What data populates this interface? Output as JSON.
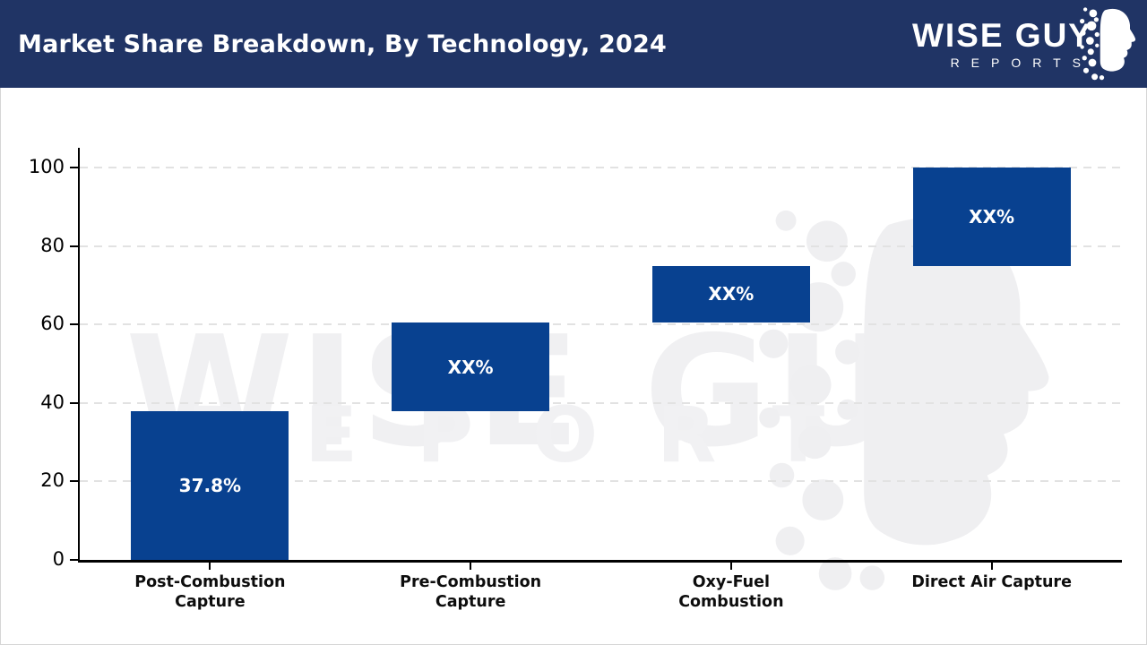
{
  "header": {
    "title": "Market Share Breakdown, By Technology, 2024",
    "logo": {
      "name": "WISE GUY",
      "sub": "REPORTS"
    }
  },
  "watermark": {
    "name": "WISE GUY",
    "sub": "REPORTS"
  },
  "chart_data": {
    "type": "bar",
    "subtype": "waterfall-floating-bars",
    "title": "Market Share Breakdown, By Technology, 2024",
    "categories": [
      [
        "Post-Combustion",
        "Capture"
      ],
      [
        "Pre-Combustion",
        "Capture"
      ],
      [
        "Oxy-Fuel",
        "Combustion"
      ],
      [
        "Direct Air Capture"
      ]
    ],
    "segments": [
      {
        "category": "Post-Combustion Capture",
        "start": 0,
        "end": 37.8,
        "label": "37.8%"
      },
      {
        "category": "Pre-Combustion Capture",
        "start": 37.8,
        "end": 60.5,
        "label": "XX%"
      },
      {
        "category": "Oxy-Fuel Combustion",
        "start": 60.5,
        "end": 75,
        "label": "XX%"
      },
      {
        "category": "Direct Air Capture",
        "start": 75,
        "end": 100,
        "label": "XX%"
      }
    ],
    "yticks": [
      0,
      20,
      40,
      60,
      80,
      100
    ],
    "ylim": [
      0,
      100
    ],
    "xlabel": "",
    "ylabel": "",
    "grid": {
      "horizontal": true,
      "style": "dashed",
      "color": "#e2e2e2"
    },
    "legend": null,
    "colors": {
      "bar": "#084190",
      "bar_label": "#ffffff",
      "axis": "#000000",
      "tick_label": "#000000",
      "header_background": "#203465",
      "watermark": "#f0f0f2"
    }
  }
}
